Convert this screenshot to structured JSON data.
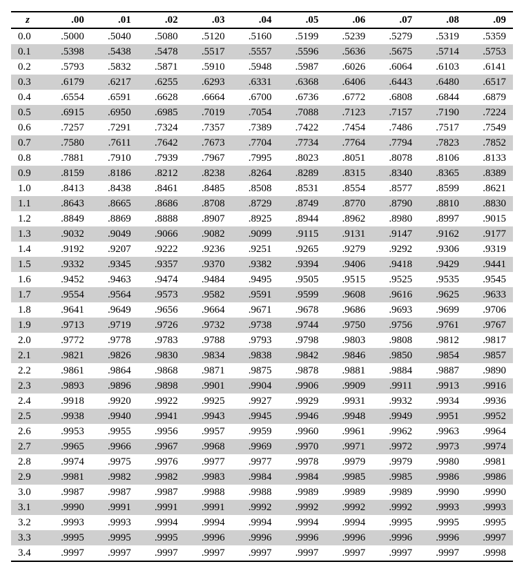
{
  "table": {
    "type": "table",
    "background_color": "#ffffff",
    "shaded_row_color": "#cfcfcf",
    "border_color": "#000000",
    "font_family": "Times New Roman",
    "header_fontsize": 15,
    "cell_fontsize": 15,
    "header": {
      "z_label": "z"
    },
    "columns": [
      ".00",
      ".01",
      ".02",
      ".03",
      ".04",
      ".05",
      ".06",
      ".07",
      ".08",
      ".09"
    ],
    "z_values": [
      "0.0",
      "0.1",
      "0.2",
      "0.3",
      "0.4",
      "0.5",
      "0.6",
      "0.7",
      "0.8",
      "0.9",
      "1.0",
      "1.1",
      "1.2",
      "1.3",
      "1.4",
      "1.5",
      "1.6",
      "1.7",
      "1.8",
      "1.9",
      "2.0",
      "2.1",
      "2.2",
      "2.3",
      "2.4",
      "2.5",
      "2.6",
      "2.7",
      "2.8",
      "2.9",
      "3.0",
      "3.1",
      "3.2",
      "3.3",
      "3.4"
    ],
    "rows": [
      [
        ".5000",
        ".5040",
        ".5080",
        ".5120",
        ".5160",
        ".5199",
        ".5239",
        ".5279",
        ".5319",
        ".5359"
      ],
      [
        ".5398",
        ".5438",
        ".5478",
        ".5517",
        ".5557",
        ".5596",
        ".5636",
        ".5675",
        ".5714",
        ".5753"
      ],
      [
        ".5793",
        ".5832",
        ".5871",
        ".5910",
        ".5948",
        ".5987",
        ".6026",
        ".6064",
        ".6103",
        ".6141"
      ],
      [
        ".6179",
        ".6217",
        ".6255",
        ".6293",
        ".6331",
        ".6368",
        ".6406",
        ".6443",
        ".6480",
        ".6517"
      ],
      [
        ".6554",
        ".6591",
        ".6628",
        ".6664",
        ".6700",
        ".6736",
        ".6772",
        ".6808",
        ".6844",
        ".6879"
      ],
      [
        ".6915",
        ".6950",
        ".6985",
        ".7019",
        ".7054",
        ".7088",
        ".7123",
        ".7157",
        ".7190",
        ".7224"
      ],
      [
        ".7257",
        ".7291",
        ".7324",
        ".7357",
        ".7389",
        ".7422",
        ".7454",
        ".7486",
        ".7517",
        ".7549"
      ],
      [
        ".7580",
        ".7611",
        ".7642",
        ".7673",
        ".7704",
        ".7734",
        ".7764",
        ".7794",
        ".7823",
        ".7852"
      ],
      [
        ".7881",
        ".7910",
        ".7939",
        ".7967",
        ".7995",
        ".8023",
        ".8051",
        ".8078",
        ".8106",
        ".8133"
      ],
      [
        ".8159",
        ".8186",
        ".8212",
        ".8238",
        ".8264",
        ".8289",
        ".8315",
        ".8340",
        ".8365",
        ".8389"
      ],
      [
        ".8413",
        ".8438",
        ".8461",
        ".8485",
        ".8508",
        ".8531",
        ".8554",
        ".8577",
        ".8599",
        ".8621"
      ],
      [
        ".8643",
        ".8665",
        ".8686",
        ".8708",
        ".8729",
        ".8749",
        ".8770",
        ".8790",
        ".8810",
        ".8830"
      ],
      [
        ".8849",
        ".8869",
        ".8888",
        ".8907",
        ".8925",
        ".8944",
        ".8962",
        ".8980",
        ".8997",
        ".9015"
      ],
      [
        ".9032",
        ".9049",
        ".9066",
        ".9082",
        ".9099",
        ".9115",
        ".9131",
        ".9147",
        ".9162",
        ".9177"
      ],
      [
        ".9192",
        ".9207",
        ".9222",
        ".9236",
        ".9251",
        ".9265",
        ".9279",
        ".9292",
        ".9306",
        ".9319"
      ],
      [
        ".9332",
        ".9345",
        ".9357",
        ".9370",
        ".9382",
        ".9394",
        ".9406",
        ".9418",
        ".9429",
        ".9441"
      ],
      [
        ".9452",
        ".9463",
        ".9474",
        ".9484",
        ".9495",
        ".9505",
        ".9515",
        ".9525",
        ".9535",
        ".9545"
      ],
      [
        ".9554",
        ".9564",
        ".9573",
        ".9582",
        ".9591",
        ".9599",
        ".9608",
        ".9616",
        ".9625",
        ".9633"
      ],
      [
        ".9641",
        ".9649",
        ".9656",
        ".9664",
        ".9671",
        ".9678",
        ".9686",
        ".9693",
        ".9699",
        ".9706"
      ],
      [
        ".9713",
        ".9719",
        ".9726",
        ".9732",
        ".9738",
        ".9744",
        ".9750",
        ".9756",
        ".9761",
        ".9767"
      ],
      [
        ".9772",
        ".9778",
        ".9783",
        ".9788",
        ".9793",
        ".9798",
        ".9803",
        ".9808",
        ".9812",
        ".9817"
      ],
      [
        ".9821",
        ".9826",
        ".9830",
        ".9834",
        ".9838",
        ".9842",
        ".9846",
        ".9850",
        ".9854",
        ".9857"
      ],
      [
        ".9861",
        ".9864",
        ".9868",
        ".9871",
        ".9875",
        ".9878",
        ".9881",
        ".9884",
        ".9887",
        ".9890"
      ],
      [
        ".9893",
        ".9896",
        ".9898",
        ".9901",
        ".9904",
        ".9906",
        ".9909",
        ".9911",
        ".9913",
        ".9916"
      ],
      [
        ".9918",
        ".9920",
        ".9922",
        ".9925",
        ".9927",
        ".9929",
        ".9931",
        ".9932",
        ".9934",
        ".9936"
      ],
      [
        ".9938",
        ".9940",
        ".9941",
        ".9943",
        ".9945",
        ".9946",
        ".9948",
        ".9949",
        ".9951",
        ".9952"
      ],
      [
        ".9953",
        ".9955",
        ".9956",
        ".9957",
        ".9959",
        ".9960",
        ".9961",
        ".9962",
        ".9963",
        ".9964"
      ],
      [
        ".9965",
        ".9966",
        ".9967",
        ".9968",
        ".9969",
        ".9970",
        ".9971",
        ".9972",
        ".9973",
        ".9974"
      ],
      [
        ".9974",
        ".9975",
        ".9976",
        ".9977",
        ".9977",
        ".9978",
        ".9979",
        ".9979",
        ".9980",
        ".9981"
      ],
      [
        ".9981",
        ".9982",
        ".9982",
        ".9983",
        ".9984",
        ".9984",
        ".9985",
        ".9985",
        ".9986",
        ".9986"
      ],
      [
        ".9987",
        ".9987",
        ".9987",
        ".9988",
        ".9988",
        ".9989",
        ".9989",
        ".9989",
        ".9990",
        ".9990"
      ],
      [
        ".9990",
        ".9991",
        ".9991",
        ".9991",
        ".9992",
        ".9992",
        ".9992",
        ".9992",
        ".9993",
        ".9993"
      ],
      [
        ".9993",
        ".9993",
        ".9994",
        ".9994",
        ".9994",
        ".9994",
        ".9994",
        ".9995",
        ".9995",
        ".9995"
      ],
      [
        ".9995",
        ".9995",
        ".9995",
        ".9996",
        ".9996",
        ".9996",
        ".9996",
        ".9996",
        ".9996",
        ".9997"
      ],
      [
        ".9997",
        ".9997",
        ".9997",
        ".9997",
        ".9997",
        ".9997",
        ".9997",
        ".9997",
        ".9997",
        ".9998"
      ]
    ]
  }
}
